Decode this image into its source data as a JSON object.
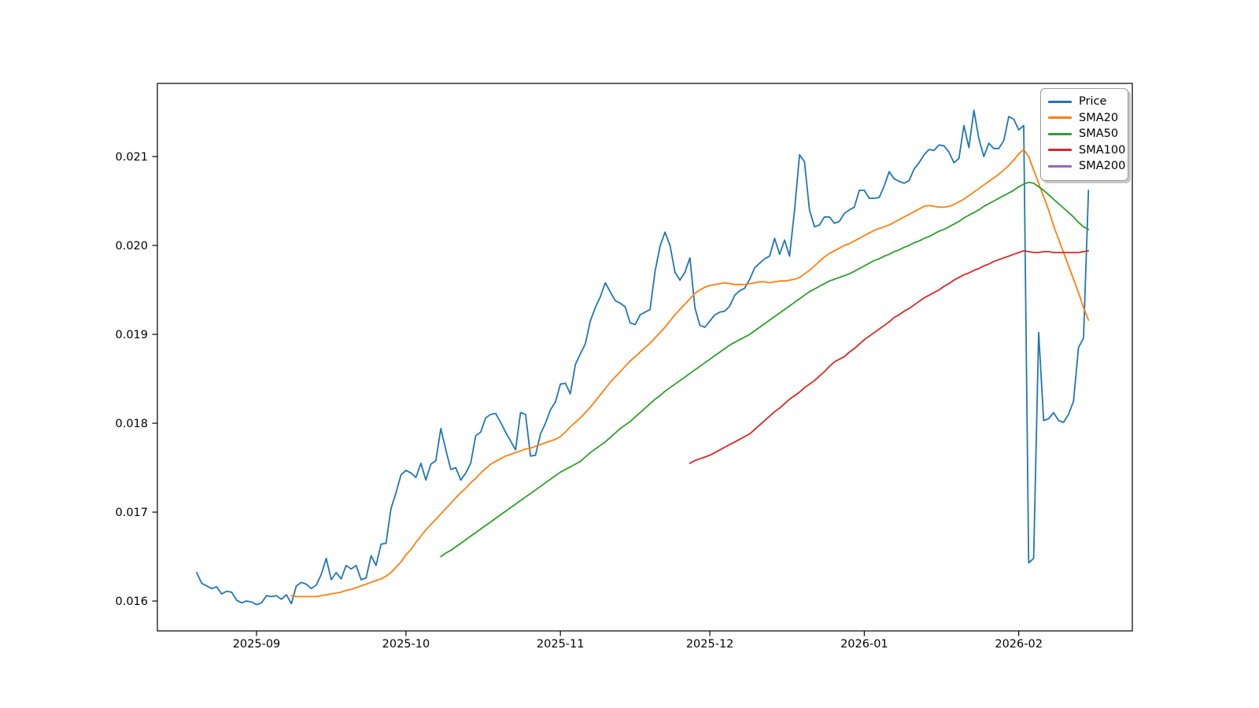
{
  "chart_data": {
    "type": "line",
    "title": "",
    "xlabel": "",
    "ylabel": "",
    "grid": false,
    "legend_position": "upper right",
    "x_unit": "date",
    "x_frequency": "daily",
    "x_start_date": "2025-08-20",
    "xlim_index": [
      -7.9,
      187.8
    ],
    "ylim": [
      0.015664,
      0.021823
    ],
    "y_ticks": [
      {
        "label": "0.016",
        "value": 0.016
      },
      {
        "label": "0.017",
        "value": 0.017
      },
      {
        "label": "0.018",
        "value": 0.018
      },
      {
        "label": "0.019",
        "value": 0.019
      },
      {
        "label": "0.020",
        "value": 0.02
      },
      {
        "label": "0.021",
        "value": 0.021
      }
    ],
    "x_ticks": [
      {
        "label": "2025-09",
        "index": 12
      },
      {
        "label": "2025-10",
        "index": 42
      },
      {
        "label": "2025-11",
        "index": 73
      },
      {
        "label": "2025-12",
        "index": 103
      },
      {
        "label": "2026-01",
        "index": 134
      },
      {
        "label": "2026-02",
        "index": 165
      }
    ],
    "series": [
      {
        "name": "Price",
        "color": "#1f77b4",
        "start_index": 0,
        "values": [
          0.01632,
          0.0162,
          0.01617,
          0.01614,
          0.01616,
          0.01608,
          0.01611,
          0.0161,
          0.01601,
          0.01598,
          0.016,
          0.01599,
          0.01596,
          0.01598,
          0.01606,
          0.01605,
          0.01606,
          0.01602,
          0.01607,
          0.01597,
          0.01617,
          0.01621,
          0.01619,
          0.01614,
          0.01618,
          0.0163,
          0.01648,
          0.01624,
          0.01632,
          0.01625,
          0.0164,
          0.01636,
          0.0164,
          0.01624,
          0.01626,
          0.01651,
          0.0164,
          0.01664,
          0.01665,
          0.01704,
          0.01722,
          0.01742,
          0.01747,
          0.01744,
          0.01739,
          0.01755,
          0.01736,
          0.01754,
          0.01758,
          0.01794,
          0.0177,
          0.01748,
          0.0175,
          0.01736,
          0.01744,
          0.01755,
          0.01786,
          0.0179,
          0.01806,
          0.0181,
          0.01811,
          0.01801,
          0.0179,
          0.0178,
          0.0177,
          0.01812,
          0.0181,
          0.01763,
          0.01764,
          0.01788,
          0.018,
          0.01815,
          0.01824,
          0.01844,
          0.01845,
          0.01833,
          0.01866,
          0.01878,
          0.01889,
          0.01915,
          0.0193,
          0.01942,
          0.01958,
          0.01948,
          0.01938,
          0.01935,
          0.01931,
          0.01913,
          0.01911,
          0.01922,
          0.01925,
          0.01928,
          0.01971,
          0.01999,
          0.02015,
          0.02,
          0.0197,
          0.01961,
          0.0197,
          0.01986,
          0.0193,
          0.0191,
          0.01908,
          0.01915,
          0.01922,
          0.01925,
          0.01926,
          0.01932,
          0.01944,
          0.01949,
          0.01952,
          0.01962,
          0.01975,
          0.0198,
          0.01985,
          0.01988,
          0.02008,
          0.0199,
          0.02006,
          0.01988,
          0.0204,
          0.02102,
          0.02094,
          0.0204,
          0.02021,
          0.02023,
          0.02032,
          0.02032,
          0.02025,
          0.02027,
          0.02036,
          0.0204,
          0.02043,
          0.02062,
          0.02062,
          0.02053,
          0.02053,
          0.02054,
          0.02067,
          0.02083,
          0.02075,
          0.02072,
          0.0207,
          0.02073,
          0.02086,
          0.02093,
          0.02102,
          0.02108,
          0.02107,
          0.02113,
          0.02112,
          0.02105,
          0.02093,
          0.02098,
          0.02135,
          0.0211,
          0.02152,
          0.0212,
          0.021,
          0.02115,
          0.02109,
          0.02109,
          0.02118,
          0.02145,
          0.02142,
          0.0213,
          0.02135,
          0.01643,
          0.01648,
          0.01902,
          0.01803,
          0.01805,
          0.01812,
          0.01803,
          0.01801,
          0.0181,
          0.01825,
          0.01885,
          0.01896,
          0.02062
        ]
      },
      {
        "name": "SMA20",
        "color": "#ff7f0e",
        "start_index": 19,
        "values": [
          0.01606,
          0.01605,
          0.01605,
          0.01605,
          0.01605,
          0.01605,
          0.01606,
          0.01607,
          0.01608,
          0.01609,
          0.0161,
          0.01612,
          0.01613,
          0.01615,
          0.01617,
          0.01619,
          0.01621,
          0.01623,
          0.01625,
          0.01628,
          0.01632,
          0.01638,
          0.01644,
          0.01652,
          0.01658,
          0.01666,
          0.01673,
          0.0168,
          0.01686,
          0.01692,
          0.01698,
          0.01704,
          0.0171,
          0.01716,
          0.01722,
          0.01727,
          0.01733,
          0.01738,
          0.01744,
          0.01749,
          0.01754,
          0.01757,
          0.0176,
          0.01763,
          0.01765,
          0.01767,
          0.01769,
          0.01771,
          0.01772,
          0.01774,
          0.01776,
          0.01778,
          0.0178,
          0.01782,
          0.01785,
          0.0179,
          0.01796,
          0.01801,
          0.01806,
          0.01812,
          0.01818,
          0.01825,
          0.01832,
          0.01839,
          0.01846,
          0.01852,
          0.01858,
          0.01864,
          0.0187,
          0.01875,
          0.0188,
          0.01885,
          0.0189,
          0.01896,
          0.01902,
          0.01908,
          0.01915,
          0.01922,
          0.01928,
          0.01934,
          0.0194,
          0.01946,
          0.0195,
          0.01953,
          0.01955,
          0.01956,
          0.01957,
          0.01958,
          0.01957,
          0.01956,
          0.01956,
          0.01956,
          0.01957,
          0.01958,
          0.01959,
          0.01959,
          0.01958,
          0.01959,
          0.0196,
          0.0196,
          0.01961,
          0.01962,
          0.01964,
          0.01968,
          0.01972,
          0.01977,
          0.01982,
          0.01987,
          0.01991,
          0.01994,
          0.01997,
          0.02,
          0.02002,
          0.02005,
          0.02008,
          0.02011,
          0.02014,
          0.02017,
          0.02019,
          0.02021,
          0.02023,
          0.02026,
          0.02029,
          0.02032,
          0.02035,
          0.02038,
          0.02041,
          0.02044,
          0.02045,
          0.02044,
          0.02043,
          0.02043,
          0.02044,
          0.02046,
          0.02049,
          0.02052,
          0.02056,
          0.0206,
          0.02064,
          0.02068,
          0.02072,
          0.02076,
          0.0208,
          0.02085,
          0.0209,
          0.02096,
          0.02103,
          0.02108,
          0.021,
          0.02085,
          0.0207,
          0.02055,
          0.0204,
          0.02022,
          0.02007,
          0.01992,
          0.01977,
          0.01962,
          0.01947,
          0.0193,
          0.01916
        ]
      },
      {
        "name": "SMA50",
        "color": "#2ca02c",
        "start_index": 49,
        "values": [
          0.0165,
          0.01654,
          0.01657,
          0.01661,
          0.01665,
          0.01669,
          0.01673,
          0.01677,
          0.01681,
          0.01685,
          0.01689,
          0.01693,
          0.01697,
          0.01701,
          0.01705,
          0.01709,
          0.01713,
          0.01717,
          0.01721,
          0.01725,
          0.01729,
          0.01733,
          0.01737,
          0.01741,
          0.01745,
          0.01748,
          0.01751,
          0.01754,
          0.01757,
          0.01762,
          0.01767,
          0.01771,
          0.01775,
          0.01779,
          0.01784,
          0.01789,
          0.01794,
          0.01798,
          0.01802,
          0.01807,
          0.01812,
          0.01817,
          0.01822,
          0.01827,
          0.01831,
          0.01836,
          0.0184,
          0.01844,
          0.01848,
          0.01852,
          0.01856,
          0.0186,
          0.01864,
          0.01868,
          0.01872,
          0.01876,
          0.0188,
          0.01884,
          0.01888,
          0.01891,
          0.01894,
          0.01897,
          0.019,
          0.01904,
          0.01908,
          0.01912,
          0.01916,
          0.0192,
          0.01924,
          0.01928,
          0.01932,
          0.01936,
          0.0194,
          0.01944,
          0.01948,
          0.01951,
          0.01954,
          0.01957,
          0.0196,
          0.01962,
          0.01964,
          0.01966,
          0.01968,
          0.01971,
          0.01974,
          0.01977,
          0.0198,
          0.01983,
          0.01985,
          0.01988,
          0.0199,
          0.01993,
          0.01995,
          0.01998,
          0.02,
          0.02003,
          0.02005,
          0.02008,
          0.0201,
          0.02013,
          0.02016,
          0.02018,
          0.02021,
          0.02024,
          0.02027,
          0.02031,
          0.02034,
          0.02037,
          0.0204,
          0.02044,
          0.02047,
          0.0205,
          0.02053,
          0.02056,
          0.02059,
          0.02062,
          0.02066,
          0.02069,
          0.02071,
          0.0207,
          0.02066,
          0.02062,
          0.02057,
          0.02052,
          0.02047,
          0.02042,
          0.02037,
          0.02032,
          0.02026,
          0.02021,
          0.02018
        ]
      },
      {
        "name": "SMA100",
        "color": "#d62728",
        "start_index": 99,
        "values": [
          0.01755,
          0.01758,
          0.0176,
          0.01762,
          0.01764,
          0.01767,
          0.0177,
          0.01773,
          0.01776,
          0.01779,
          0.01782,
          0.01785,
          0.01788,
          0.01793,
          0.01798,
          0.01803,
          0.01808,
          0.01813,
          0.01817,
          0.01822,
          0.01827,
          0.01831,
          0.01835,
          0.0184,
          0.01844,
          0.01848,
          0.01853,
          0.01858,
          0.01864,
          0.01869,
          0.01872,
          0.01875,
          0.0188,
          0.01884,
          0.01889,
          0.01894,
          0.01898,
          0.01902,
          0.01906,
          0.0191,
          0.01914,
          0.01919,
          0.01922,
          0.01926,
          0.01929,
          0.01933,
          0.01937,
          0.01941,
          0.01944,
          0.01947,
          0.0195,
          0.01954,
          0.01957,
          0.01961,
          0.01964,
          0.01967,
          0.01969,
          0.01972,
          0.01974,
          0.01977,
          0.01979,
          0.01982,
          0.01984,
          0.01986,
          0.01988,
          0.0199,
          0.01992,
          0.01994,
          0.01993,
          0.01992,
          0.01992,
          0.01993,
          0.01993,
          0.01992,
          0.01992,
          0.01992,
          0.01992,
          0.01992,
          0.01992,
          0.01993,
          0.01994
        ]
      },
      {
        "name": "SMA200",
        "color": "#9467bd",
        "start_index": 199,
        "values": []
      }
    ]
  }
}
